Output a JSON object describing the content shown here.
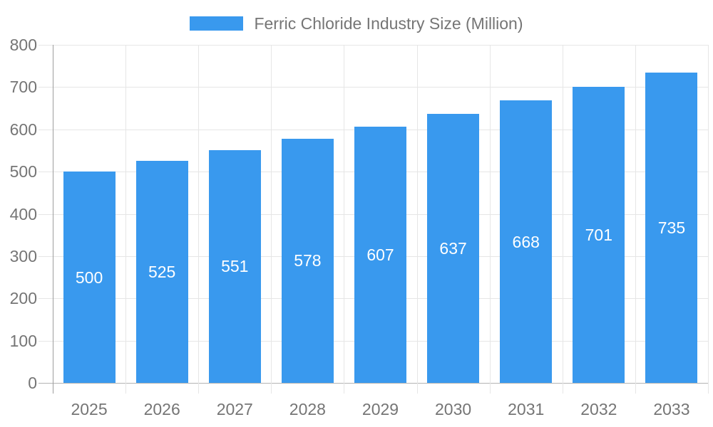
{
  "legend": {
    "label": "Ferric Chloride Industry Size (Million)"
  },
  "colors": {
    "bar": "#3999ee",
    "grid": "#e6e6e6",
    "axis_line": "#9e9e9e",
    "baseline": "#b3b3b3",
    "axis_text": "#757575",
    "bar_label_text": "#ffffff"
  },
  "chart_data": {
    "type": "bar",
    "title": "Ferric Chloride Industry Size (Million)",
    "categories": [
      "2025",
      "2026",
      "2027",
      "2028",
      "2029",
      "2030",
      "2031",
      "2032",
      "2033"
    ],
    "values": [
      500,
      525,
      551,
      578,
      607,
      637,
      668,
      701,
      735
    ],
    "xlabel": "",
    "ylabel": "",
    "ylim": [
      0,
      800
    ],
    "yticks": [
      0,
      100,
      200,
      300,
      400,
      500,
      600,
      700,
      800
    ],
    "grid": true,
    "legend_position": "top",
    "value_labels": "inside-center"
  }
}
